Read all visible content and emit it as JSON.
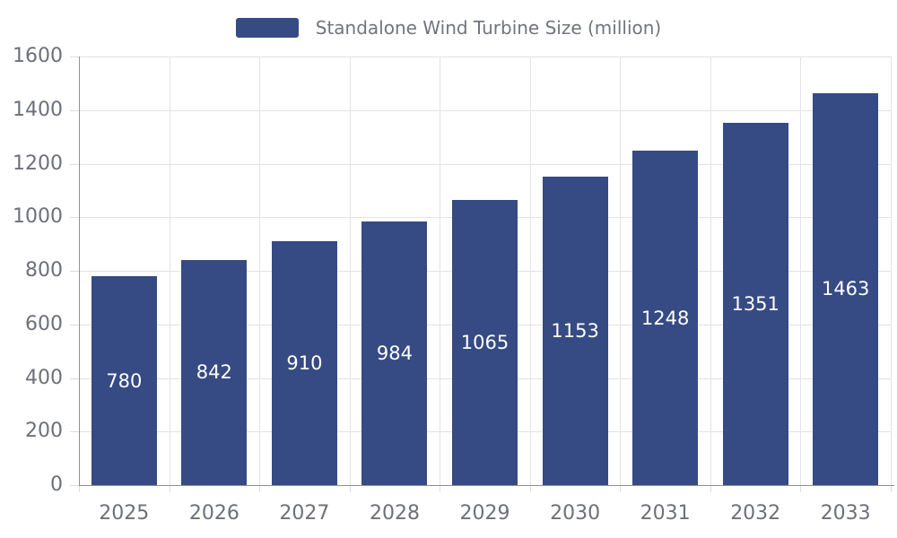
{
  "legend": {
    "label": "Standalone Wind Turbine Size (million)"
  },
  "chart_data": {
    "type": "bar",
    "title": "",
    "xlabel": "",
    "ylabel": "",
    "categories": [
      "2025",
      "2026",
      "2027",
      "2028",
      "2029",
      "2030",
      "2031",
      "2032",
      "2033"
    ],
    "values": [
      780,
      842,
      910,
      984,
      1065,
      1153,
      1248,
      1351,
      1463
    ],
    "series_name": "Standalone Wind Turbine Size (million)",
    "ylim": [
      0,
      1600
    ],
    "ytick_interval": 200,
    "ytick_labels": [
      "0",
      "200",
      "400",
      "600",
      "800",
      "1000",
      "1200",
      "1400",
      "1600"
    ],
    "grid": true,
    "legend_position": "top-center",
    "bar_labels_inside": true,
    "colors": {
      "bar": "#364a84",
      "bar_label": "#ffffff",
      "axis_label": "#6e7079",
      "legend_text": "#71747c",
      "gridline": "#e2e2e8",
      "axis_line": "#8f9096",
      "background": "#ffffff"
    }
  }
}
